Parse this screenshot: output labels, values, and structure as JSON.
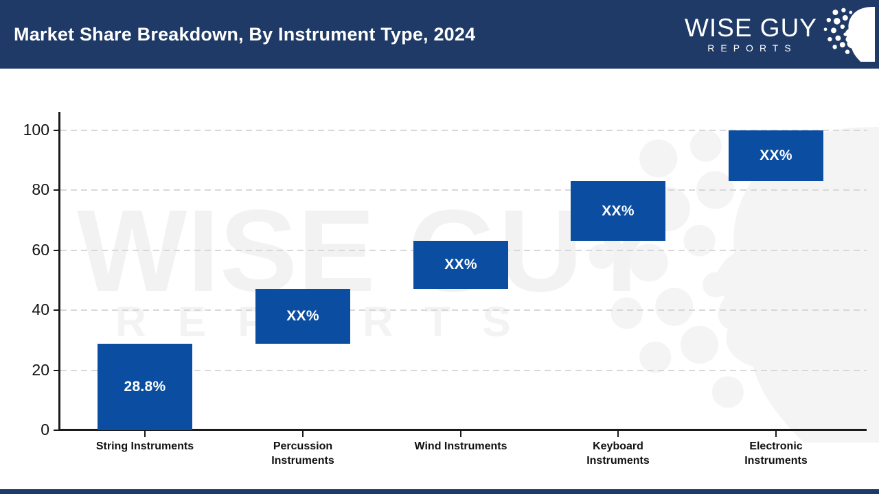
{
  "header": {
    "title": "Market Share Breakdown, By Instrument Type, 2024",
    "bg_color": "#1f3a66",
    "logo": {
      "line1": "WISE GUY",
      "line2": "REPORTS"
    }
  },
  "watermark": {
    "line1": "WISE GUY",
    "line2": "REPORTS"
  },
  "chart_data": {
    "type": "bar",
    "subtype": "waterfall-floating-segments",
    "title": "Market Share Breakdown, By Instrument Type, 2024",
    "xlabel": "",
    "ylabel": "",
    "ylim": [
      0,
      105
    ],
    "y_ticks": [
      0,
      20,
      40,
      60,
      80,
      100
    ],
    "grid": "horizontal-dashed",
    "legend": "none",
    "bar_color": "#0b4da1",
    "categories": [
      "String Instruments",
      "Percussion Instruments",
      "Wind Instruments",
      "Keyboard Instruments",
      "Electronic Instruments"
    ],
    "segments": [
      {
        "category": "String Instruments",
        "category_lines": [
          "String Instruments"
        ],
        "start": 0,
        "end": 28.8,
        "label": "28.8%"
      },
      {
        "category": "Percussion Instruments",
        "category_lines": [
          "Percussion",
          "Instruments"
        ],
        "start": 28.8,
        "end": 47,
        "label": "XX%"
      },
      {
        "category": "Wind Instruments",
        "category_lines": [
          "Wind Instruments"
        ],
        "start": 47,
        "end": 63,
        "label": "XX%"
      },
      {
        "category": "Keyboard Instruments",
        "category_lines": [
          "Keyboard",
          "Instruments"
        ],
        "start": 63,
        "end": 83,
        "label": "XX%"
      },
      {
        "category": "Electronic Instruments",
        "category_lines": [
          "Electronic",
          "Instruments"
        ],
        "start": 83,
        "end": 100,
        "label": "XX%"
      }
    ]
  }
}
